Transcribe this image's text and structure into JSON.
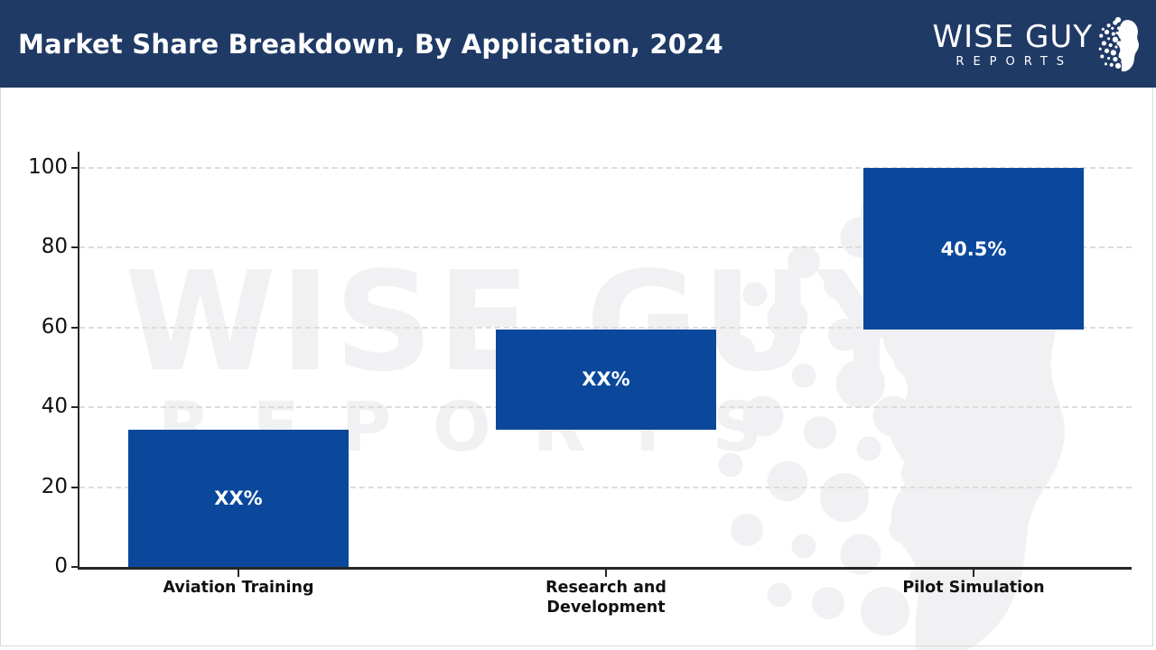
{
  "header": {
    "title": "Market Share Breakdown, By Application, 2024",
    "logo": {
      "name": "WISE GUY",
      "subtitle": "REPORTS"
    }
  },
  "watermark": {
    "line1": "WISE GUY",
    "line2": "REPORTS"
  },
  "colors": {
    "header_bg": "#203a66",
    "bar": "#0b489c",
    "bar_label": "#ffffff",
    "grid": "#dcdcdc",
    "axis": "#262626",
    "tick_label": "#111111",
    "watermark": "#f1f1f3"
  },
  "chart_data": {
    "type": "bar",
    "subtype": "floating-stacked-breakdown",
    "title": "Market Share Breakdown, By Application, 2024",
    "categories": [
      "Aviation Training",
      "Research and Development",
      "Pilot Simulation"
    ],
    "bars": [
      {
        "category": "Aviation Training",
        "start": 0,
        "end": 34.5,
        "label": "XX%"
      },
      {
        "category": "Research and Development",
        "start": 34.5,
        "end": 59.5,
        "label": "XX%"
      },
      {
        "category": "Pilot Simulation",
        "start": 59.5,
        "end": 100,
        "label": "40.5%"
      }
    ],
    "y_ticks": [
      0,
      20,
      40,
      60,
      80,
      100
    ],
    "ylim": [
      0,
      105
    ],
    "xlabel": "",
    "ylabel": "",
    "grid": "horizontal-dashed",
    "legend": "none"
  }
}
